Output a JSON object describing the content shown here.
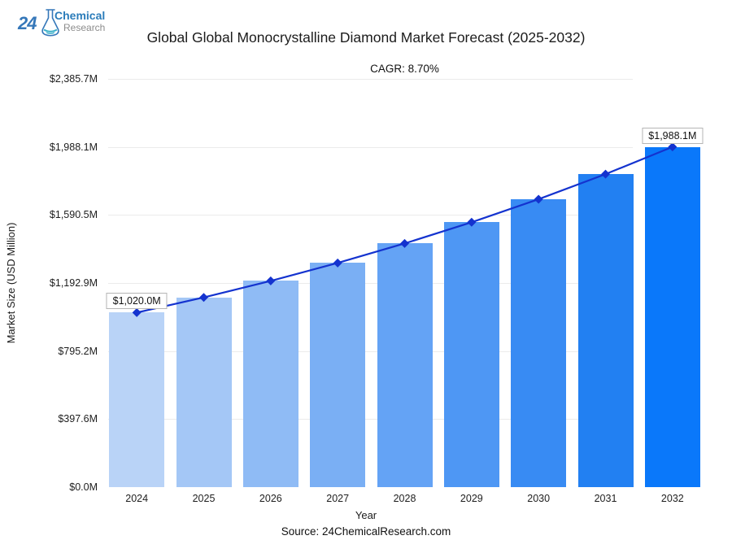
{
  "brand": {
    "number": "24",
    "word_top": "Chemical",
    "word_bottom": "Research"
  },
  "chart_data": {
    "type": "bar",
    "title": "Global Global Monocrystalline Diamond Market Forecast (2025-2032)",
    "subtitle": "CAGR: 8.70%",
    "xlabel": "Year",
    "ylabel": "Market Size (USD Million)",
    "source": "Source: 24ChemicalResearch.com",
    "categories": [
      "2024",
      "2025",
      "2026",
      "2027",
      "2028",
      "2029",
      "2030",
      "2031",
      "2032"
    ],
    "values": [
      1020.0,
      1108.7,
      1205.2,
      1310.0,
      1424.0,
      1547.9,
      1682.6,
      1829.0,
      1988.1
    ],
    "ylim": [
      0,
      2385.7
    ],
    "yticks": [
      {
        "value": 0.0,
        "label": "$0.0M"
      },
      {
        "value": 397.6,
        "label": "$397.6M"
      },
      {
        "value": 795.2,
        "label": "$795.2M"
      },
      {
        "value": 1192.9,
        "label": "$1,192.9M"
      },
      {
        "value": 1590.5,
        "label": "$1,590.5M"
      },
      {
        "value": 1988.1,
        "label": "$1,988.1M"
      },
      {
        "value": 2385.7,
        "label": "$2,385.7M"
      }
    ],
    "bar_colors": [
      "#b9d3f7",
      "#a4c7f6",
      "#8fbbf5",
      "#7aaff4",
      "#64a3f5",
      "#4e97f4",
      "#388bf3",
      "#2280f2",
      "#0a78fa"
    ],
    "line_color": "#1433cf",
    "grid": true,
    "legend_position": "none",
    "annotations": [
      {
        "index": 0,
        "text": "$1,020.0M"
      },
      {
        "index": 8,
        "text": "$1,988.1M"
      }
    ]
  }
}
